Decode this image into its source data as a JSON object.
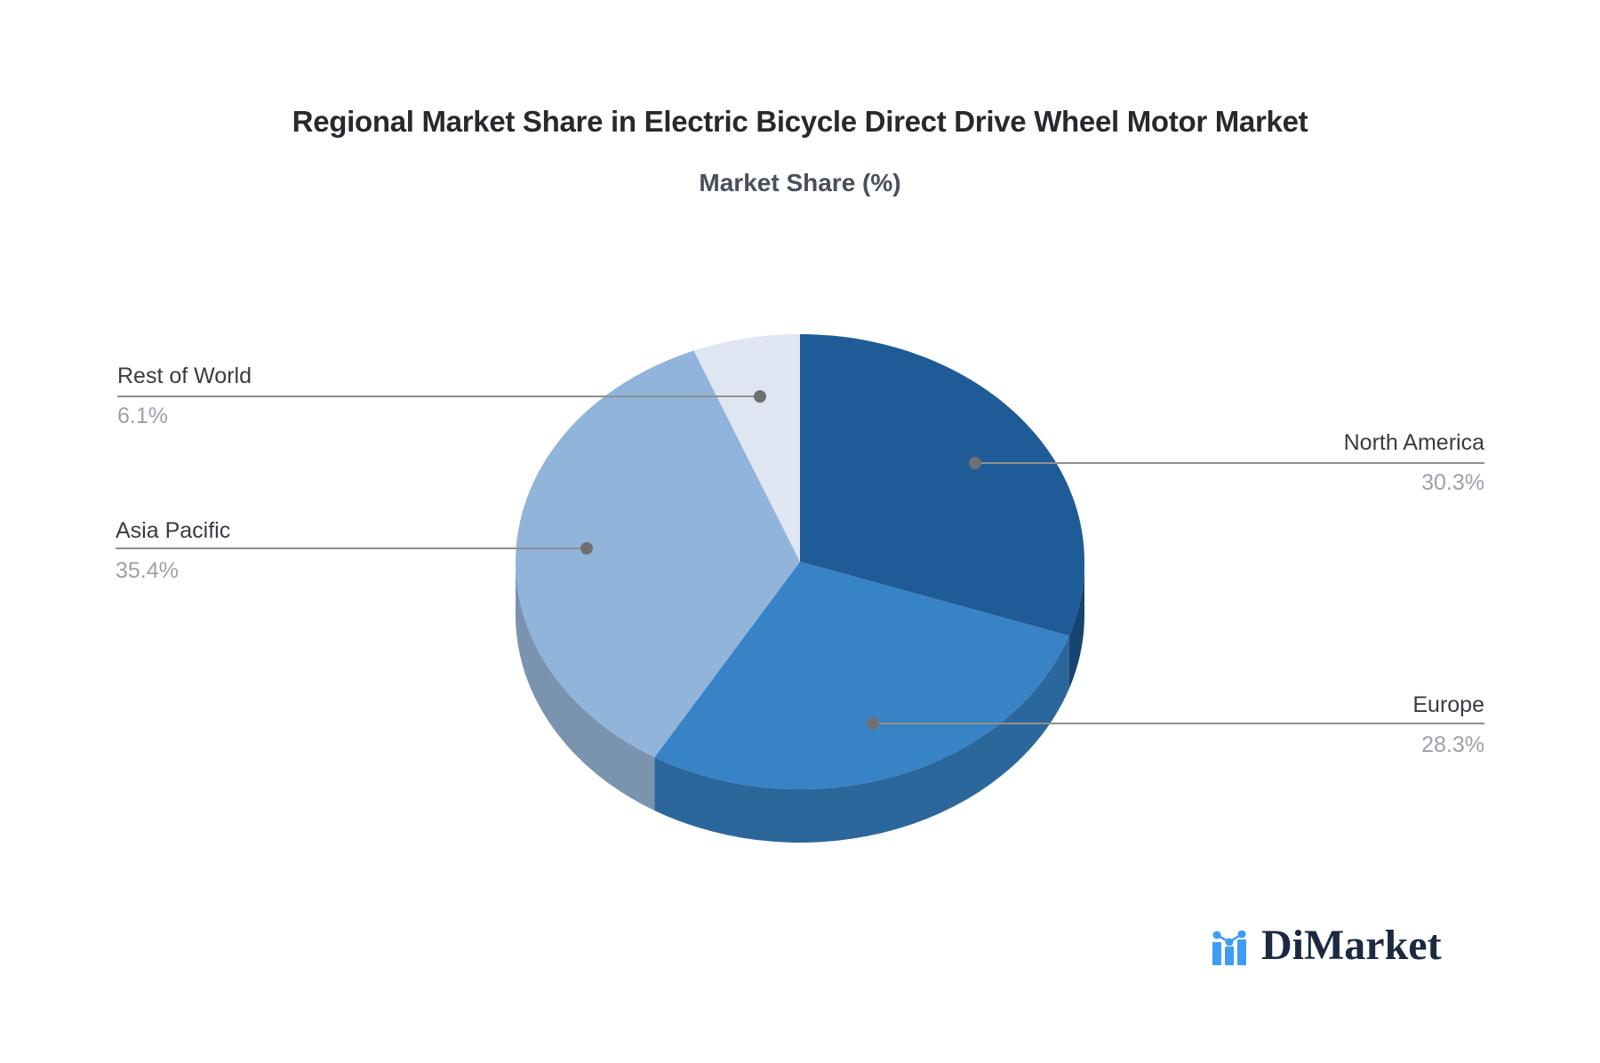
{
  "chart_data": {
    "type": "pie",
    "style": "3d",
    "title": "Regional Market Share in Electric Bicycle Direct Drive Wheel Motor Market",
    "subtitle": "Market Share (%)",
    "unit": "%",
    "start_angle_deg": 0,
    "clockwise": true,
    "legend": "none",
    "labels_position": "callouts-with-leader-lines",
    "slices": [
      {
        "label": "North America",
        "value": 30.3,
        "pct_label": "30.3%",
        "color": "#1F5C97",
        "side_color": "#174571"
      },
      {
        "label": "Europe",
        "value": 28.3,
        "pct_label": "28.3%",
        "color": "#3783C6",
        "side_color": "#2B679B"
      },
      {
        "label": "Asia Pacific",
        "value": 35.4,
        "pct_label": "35.4%",
        "color": "#90B4DA",
        "side_color": "#7A93AE"
      },
      {
        "label": "Rest of World",
        "value": 6.1,
        "pct_label": "6.1%",
        "color": "#DFE6F1",
        "side_color": "#B9C4D6"
      }
    ]
  },
  "colors": {
    "background": "#FFFFFF",
    "title": "#26292E",
    "subtitle": "#47505C",
    "label_text": "#383D42",
    "pct_text": "#9CA2A9",
    "leader_line": "#909090",
    "leader_dot": "#6F6F6F"
  },
  "logo": {
    "brand": "DiMarket",
    "icon": "bar-chart-logo-icon",
    "icon_color": "#3E9CF6",
    "text_color": "#1B2942"
  }
}
